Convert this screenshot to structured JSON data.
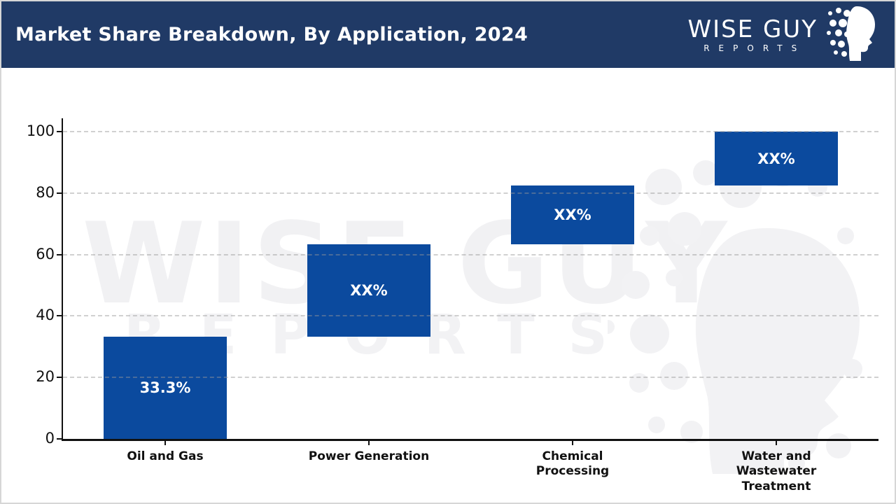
{
  "header": {
    "title": "Market Share Breakdown, By Application, 2024",
    "logo": {
      "line1": "WISE GUY",
      "line2": "REPORTS"
    }
  },
  "watermark": {
    "line1": "WISE GUY",
    "line2": "REPORTS"
  },
  "chart_data": {
    "type": "bar",
    "subtype": "waterfall",
    "title": "Market Share Breakdown, By Application, 2024",
    "xlabel": "",
    "ylabel": "",
    "ylim": [
      0,
      105
    ],
    "yticks": [
      0,
      20,
      40,
      60,
      80,
      100
    ],
    "grid": "horizontal-dashed",
    "legend": "none",
    "bar_color": "#0b4a9e",
    "bars": [
      {
        "category": "Oil and Gas",
        "lines": [
          "Oil and Gas"
        ],
        "start": 0,
        "end": 33.3,
        "label": "33.3%"
      },
      {
        "category": "Power Generation",
        "lines": [
          "Power Generation"
        ],
        "start": 33.3,
        "end": 63.3,
        "label": "XX%"
      },
      {
        "category": "Chemical Processing",
        "lines": [
          "Chemical",
          "Processing"
        ],
        "start": 63.3,
        "end": 82.5,
        "label": "XX%"
      },
      {
        "category": "Water and Wastewater Treatment",
        "lines": [
          "Water and",
          "Wastewater",
          "Treatment"
        ],
        "start": 82.5,
        "end": 100,
        "label": "XX%"
      }
    ]
  },
  "colors": {
    "header_bg": "#203a66",
    "bar": "#0b4a9e",
    "axis": "#111111",
    "grid": "#d8d8d8",
    "watermark": "#f1f1f3",
    "page_bg": "#ffffff"
  }
}
